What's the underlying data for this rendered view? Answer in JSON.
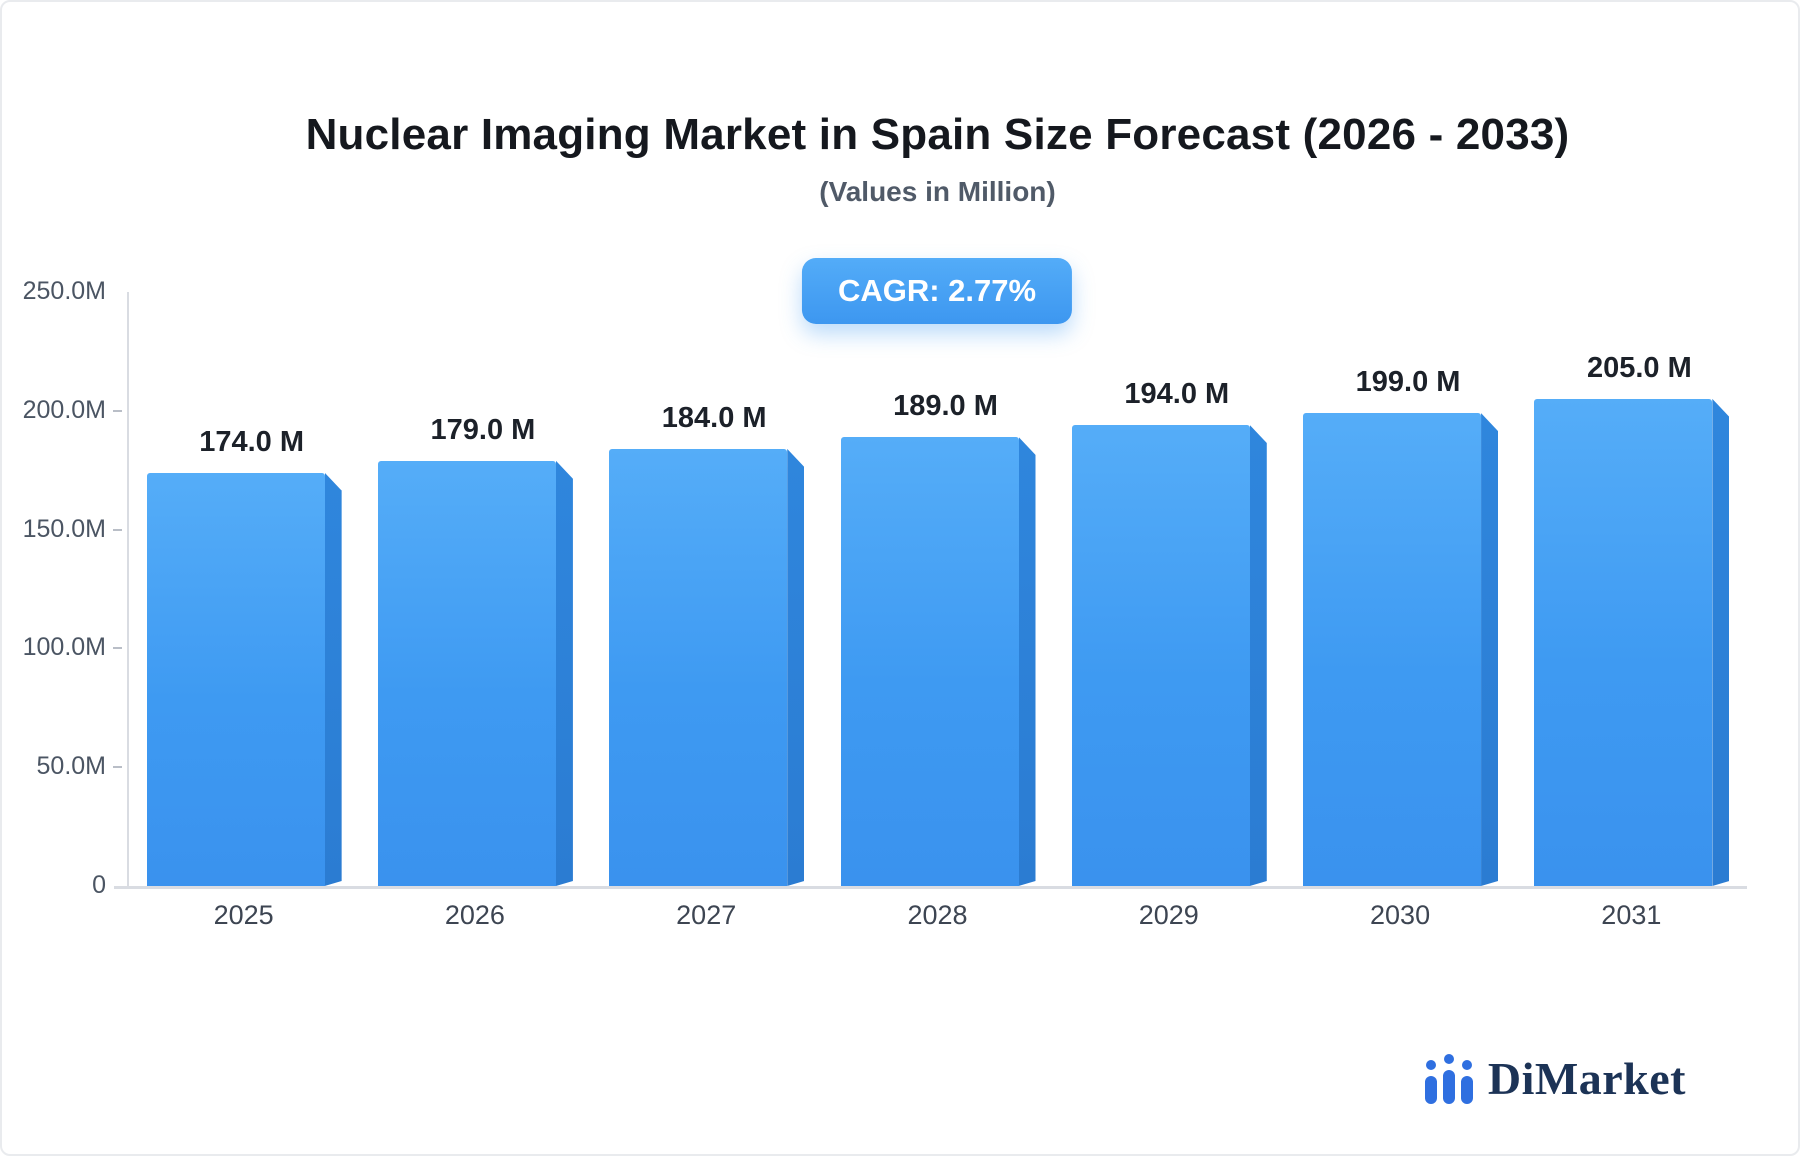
{
  "header": {
    "title": "Nuclear Imaging Market in Spain Size Forecast (2026 - 2033)",
    "subtitle": "(Values in Million)",
    "cagr_badge": "CAGR: 2.77%"
  },
  "chart_data": {
    "type": "bar",
    "title": "Nuclear Imaging Market in Spain Size Forecast (2026 - 2033)",
    "subtitle": "(Values in Million)",
    "categories": [
      "2025",
      "2026",
      "2027",
      "2028",
      "2029",
      "2030",
      "2031"
    ],
    "values": [
      174,
      179,
      184,
      189,
      194,
      199,
      205
    ],
    "value_labels": [
      "174.0 M",
      "179.0 M",
      "184.0 M",
      "189.0 M",
      "194.0 M",
      "199.0 M",
      "205.0 M"
    ],
    "xlabel": "",
    "ylabel": "",
    "ylim": [
      0,
      250
    ],
    "y_ticks": [
      {
        "value": 0,
        "label": "0"
      },
      {
        "value": 50,
        "label": "50.0M"
      },
      {
        "value": 100,
        "label": "100.0M"
      },
      {
        "value": 150,
        "label": "150.0M"
      },
      {
        "value": 200,
        "label": "200.0M"
      },
      {
        "value": 250,
        "label": "250.0M"
      }
    ],
    "grid": false,
    "legend": "none",
    "colors": {
      "bar_face": "#3e9af2",
      "bar_side": "#2c7fd6",
      "axis": "#d9dce2",
      "badge": "#3d97f0"
    }
  },
  "logo": {
    "icon": "bar-chart-logo-icon",
    "text": "DiMarket",
    "color": "#1c3356",
    "icon_color": "#2f6fe0"
  }
}
